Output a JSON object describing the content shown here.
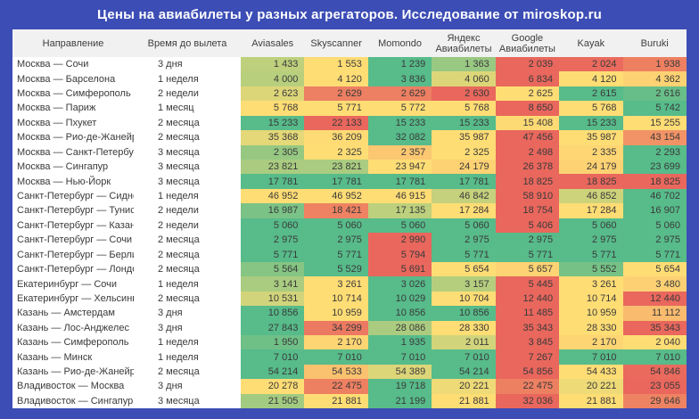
{
  "chart_data": {
    "type": "heatmap",
    "title": "Цены на авиабилеты у разных агрегаторов. Исследование от miroskop.ru",
    "columns": [
      "Направление",
      "Время до вылета",
      "Aviasales",
      "Skyscanner",
      "Momondo",
      "Яндекс Авиабилеты",
      "Google Авиабилеты",
      "Kayak",
      "Buruki"
    ],
    "rows": [
      {
        "direction": "Москва — Сочи",
        "time": "3 дня",
        "prices": [
          1433,
          1553,
          1239,
          1363,
          2039,
          2024,
          1938
        ]
      },
      {
        "direction": "Москва — Барселона",
        "time": "1 неделя",
        "prices": [
          4000,
          4120,
          3836,
          4060,
          6834,
          4120,
          4362
        ]
      },
      {
        "direction": "Москва — Симферополь",
        "time": "2 недели",
        "prices": [
          2623,
          2629,
          2629,
          2630,
          2625,
          2615,
          2616
        ]
      },
      {
        "direction": "Москва — Париж",
        "time": "1 месяц",
        "prices": [
          5768,
          5771,
          5772,
          5768,
          8650,
          5768,
          5742
        ]
      },
      {
        "direction": "Москва — Пхукет",
        "time": "2 месяца",
        "prices": [
          15233,
          22133,
          15233,
          15233,
          15408,
          15233,
          15255
        ]
      },
      {
        "direction": "Москва — Рио-де-Жанейро",
        "time": "2 месяца",
        "prices": [
          35368,
          36209,
          32082,
          35987,
          47456,
          35987,
          43154
        ]
      },
      {
        "direction": "Москва — Санкт-Петербург",
        "time": "3 месяца",
        "prices": [
          2305,
          2325,
          2357,
          2325,
          2498,
          2335,
          2293
        ]
      },
      {
        "direction": "Москва — Сингапур",
        "time": "3 месяца",
        "prices": [
          23821,
          23821,
          23947,
          24179,
          26378,
          24179,
          23699
        ]
      },
      {
        "direction": "Москва — Нью-Йорк",
        "time": "3 месяца",
        "prices": [
          17781,
          17781,
          17781,
          17781,
          18825,
          18825,
          18825
        ]
      },
      {
        "direction": "Санкт-Петербург — Сидней",
        "time": "1 неделя",
        "prices": [
          46952,
          46952,
          46915,
          46842,
          58910,
          46852,
          46702
        ]
      },
      {
        "direction": "Санкт-Петербург — Тунис",
        "time": "2 недели",
        "prices": [
          16987,
          18421,
          17135,
          17284,
          18754,
          17284,
          16907
        ]
      },
      {
        "direction": "Санкт-Петербург — Казань",
        "time": "2 недели",
        "prices": [
          5060,
          5060,
          5060,
          5060,
          5406,
          5060,
          5060
        ]
      },
      {
        "direction": "Санкт-Петербург — Сочи",
        "time": "2 месяца",
        "prices": [
          2975,
          2975,
          2990,
          2975,
          2975,
          2975,
          2975
        ]
      },
      {
        "direction": "Санкт-Петербург — Берлин",
        "time": "2 месяца",
        "prices": [
          5771,
          5771,
          5794,
          5771,
          5771,
          5771,
          5771
        ]
      },
      {
        "direction": "Санкт-Петербург — Лондон",
        "time": "2 месяца",
        "prices": [
          5564,
          5529,
          5691,
          5654,
          5657,
          5552,
          5654
        ]
      },
      {
        "direction": "Екатеринбург — Сочи",
        "time": "1 неделя",
        "prices": [
          3141,
          3261,
          3026,
          3157,
          5445,
          3261,
          3480
        ]
      },
      {
        "direction": "Екатеринбург — Хельсинки",
        "time": "2 месяца",
        "prices": [
          10531,
          10714,
          10029,
          10704,
          12440,
          10714,
          12440
        ]
      },
      {
        "direction": "Казань — Амстердам",
        "time": "3 дня",
        "prices": [
          10856,
          10959,
          10856,
          10856,
          11485,
          10959,
          11112
        ]
      },
      {
        "direction": "Казань — Лос-Анджелес",
        "time": "3 дня",
        "prices": [
          27843,
          34299,
          28086,
          28330,
          35343,
          28330,
          35343
        ]
      },
      {
        "direction": "Казань — Симферополь",
        "time": "1 неделя",
        "prices": [
          1950,
          2170,
          1935,
          2011,
          3845,
          2170,
          2040
        ]
      },
      {
        "direction": "Казань — Минск",
        "time": "1 неделя",
        "prices": [
          7010,
          7010,
          7010,
          7010,
          7267,
          7010,
          7010
        ]
      },
      {
        "direction": "Казань — Рио-де-Жанейро",
        "time": "2 месяца",
        "prices": [
          54214,
          54533,
          54389,
          54214,
          54856,
          54433,
          54846
        ]
      },
      {
        "direction": "Владивосток — Москва",
        "time": "3 дня",
        "prices": [
          20278,
          22475,
          19718,
          20221,
          22475,
          20221,
          23055
        ]
      },
      {
        "direction": "Владивосток — Сингапур",
        "time": "3 месяца",
        "prices": [
          21505,
          21881,
          21199,
          21881,
          32036,
          21881,
          29646
        ]
      }
    ],
    "color_scale": {
      "min": "#57bb8a",
      "mid": "#ffdd75",
      "max": "#e9675d",
      "rule": "per-row: green=min, yellow=median, red=max"
    },
    "layout": {
      "frame_color": "#3c4db5",
      "header_bg": "#f1f1f1",
      "row_bg": "#ffffff"
    }
  }
}
